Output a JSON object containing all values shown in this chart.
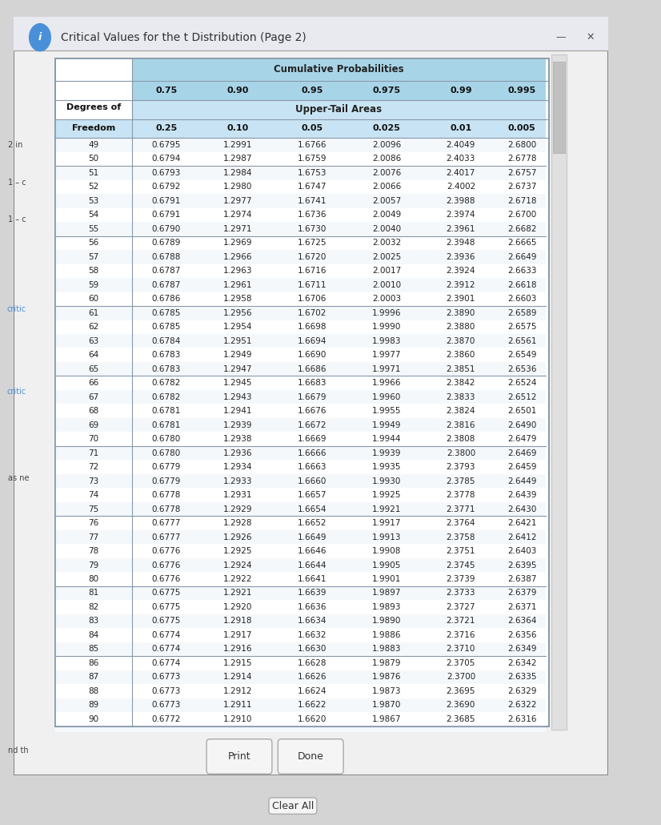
{
  "title": "Critical Values for the t Distribution (Page 2)",
  "cum_prob_header": "Cumulative Probabilities",
  "cum_probs": [
    "0.75",
    "0.90",
    "0.95",
    "0.975",
    "0.99",
    "0.995"
  ],
  "upper_tail_header": "Upper-Tail Areas",
  "upper_tails": [
    "0.25",
    "0.10",
    "0.05",
    "0.025",
    "0.01",
    "0.005"
  ],
  "col1_header1": "Degrees of",
  "col1_header2": "Freedom",
  "table_data": [
    [
      49,
      0.6795,
      1.2991,
      1.6766,
      2.0096,
      2.4049,
      2.68
    ],
    [
      50,
      0.6794,
      1.2987,
      1.6759,
      2.0086,
      2.4033,
      2.6778
    ],
    [
      51,
      0.6793,
      1.2984,
      1.6753,
      2.0076,
      2.4017,
      2.6757
    ],
    [
      52,
      0.6792,
      1.298,
      1.6747,
      2.0066,
      2.4002,
      2.6737
    ],
    [
      53,
      0.6791,
      1.2977,
      1.6741,
      2.0057,
      2.3988,
      2.6718
    ],
    [
      54,
      0.6791,
      1.2974,
      1.6736,
      2.0049,
      2.3974,
      2.67
    ],
    [
      55,
      0.679,
      1.2971,
      1.673,
      2.004,
      2.3961,
      2.6682
    ],
    [
      56,
      0.6789,
      1.2969,
      1.6725,
      2.0032,
      2.3948,
      2.6665
    ],
    [
      57,
      0.6788,
      1.2966,
      1.672,
      2.0025,
      2.3936,
      2.6649
    ],
    [
      58,
      0.6787,
      1.2963,
      1.6716,
      2.0017,
      2.3924,
      2.6633
    ],
    [
      59,
      0.6787,
      1.2961,
      1.6711,
      2.001,
      2.3912,
      2.6618
    ],
    [
      60,
      0.6786,
      1.2958,
      1.6706,
      2.0003,
      2.3901,
      2.6603
    ],
    [
      61,
      0.6785,
      1.2956,
      1.6702,
      1.9996,
      2.389,
      2.6589
    ],
    [
      62,
      0.6785,
      1.2954,
      1.6698,
      1.999,
      2.388,
      2.6575
    ],
    [
      63,
      0.6784,
      1.2951,
      1.6694,
      1.9983,
      2.387,
      2.6561
    ],
    [
      64,
      0.6783,
      1.2949,
      1.669,
      1.9977,
      2.386,
      2.6549
    ],
    [
      65,
      0.6783,
      1.2947,
      1.6686,
      1.9971,
      2.3851,
      2.6536
    ],
    [
      66,
      0.6782,
      1.2945,
      1.6683,
      1.9966,
      2.3842,
      2.6524
    ],
    [
      67,
      0.6782,
      1.2943,
      1.6679,
      1.996,
      2.3833,
      2.6512
    ],
    [
      68,
      0.6781,
      1.2941,
      1.6676,
      1.9955,
      2.3824,
      2.6501
    ],
    [
      69,
      0.6781,
      1.2939,
      1.6672,
      1.9949,
      2.3816,
      2.649
    ],
    [
      70,
      0.678,
      1.2938,
      1.6669,
      1.9944,
      2.3808,
      2.6479
    ],
    [
      71,
      0.678,
      1.2936,
      1.6666,
      1.9939,
      2.38,
      2.6469
    ],
    [
      72,
      0.6779,
      1.2934,
      1.6663,
      1.9935,
      2.3793,
      2.6459
    ],
    [
      73,
      0.6779,
      1.2933,
      1.666,
      1.993,
      2.3785,
      2.6449
    ],
    [
      74,
      0.6778,
      1.2931,
      1.6657,
      1.9925,
      2.3778,
      2.6439
    ],
    [
      75,
      0.6778,
      1.2929,
      1.6654,
      1.9921,
      2.3771,
      2.643
    ],
    [
      76,
      0.6777,
      1.2928,
      1.6652,
      1.9917,
      2.3764,
      2.6421
    ],
    [
      77,
      0.6777,
      1.2926,
      1.6649,
      1.9913,
      2.3758,
      2.6412
    ],
    [
      78,
      0.6776,
      1.2925,
      1.6646,
      1.9908,
      2.3751,
      2.6403
    ],
    [
      79,
      0.6776,
      1.2924,
      1.6644,
      1.9905,
      2.3745,
      2.6395
    ],
    [
      80,
      0.6776,
      1.2922,
      1.6641,
      1.9901,
      2.3739,
      2.6387
    ],
    [
      81,
      0.6775,
      1.2921,
      1.6639,
      1.9897,
      2.3733,
      2.6379
    ],
    [
      82,
      0.6775,
      1.292,
      1.6636,
      1.9893,
      2.3727,
      2.6371
    ],
    [
      83,
      0.6775,
      1.2918,
      1.6634,
      1.989,
      2.3721,
      2.6364
    ],
    [
      84,
      0.6774,
      1.2917,
      1.6632,
      1.9886,
      2.3716,
      2.6356
    ],
    [
      85,
      0.6774,
      1.2916,
      1.663,
      1.9883,
      2.371,
      2.6349
    ],
    [
      86,
      0.6774,
      1.2915,
      1.6628,
      1.9879,
      2.3705,
      2.6342
    ],
    [
      87,
      0.6773,
      1.2914,
      1.6626,
      1.9876,
      2.37,
      2.6335
    ],
    [
      88,
      0.6773,
      1.2912,
      1.6624,
      1.9873,
      2.3695,
      2.6329
    ],
    [
      89,
      0.6773,
      1.2911,
      1.6622,
      1.987,
      2.369,
      2.6322
    ],
    [
      90,
      0.6772,
      1.291,
      1.662,
      1.9867,
      2.3685,
      2.6316
    ]
  ],
  "window_bg": "#d4d4d4",
  "dialog_bg": "#f0f0f0",
  "title_bar_bg": "#e8e8f0",
  "table_header_bg": "#a8d4e8",
  "table_subheader_bg": "#c8e4f4",
  "row_bg_odd": "#f0f4f8",
  "row_bg_even": "#ffffff",
  "separator_color": "#b0b8c4",
  "group_separator_dfs": [
    50,
    55,
    60,
    65,
    70,
    75,
    80,
    85,
    90
  ]
}
